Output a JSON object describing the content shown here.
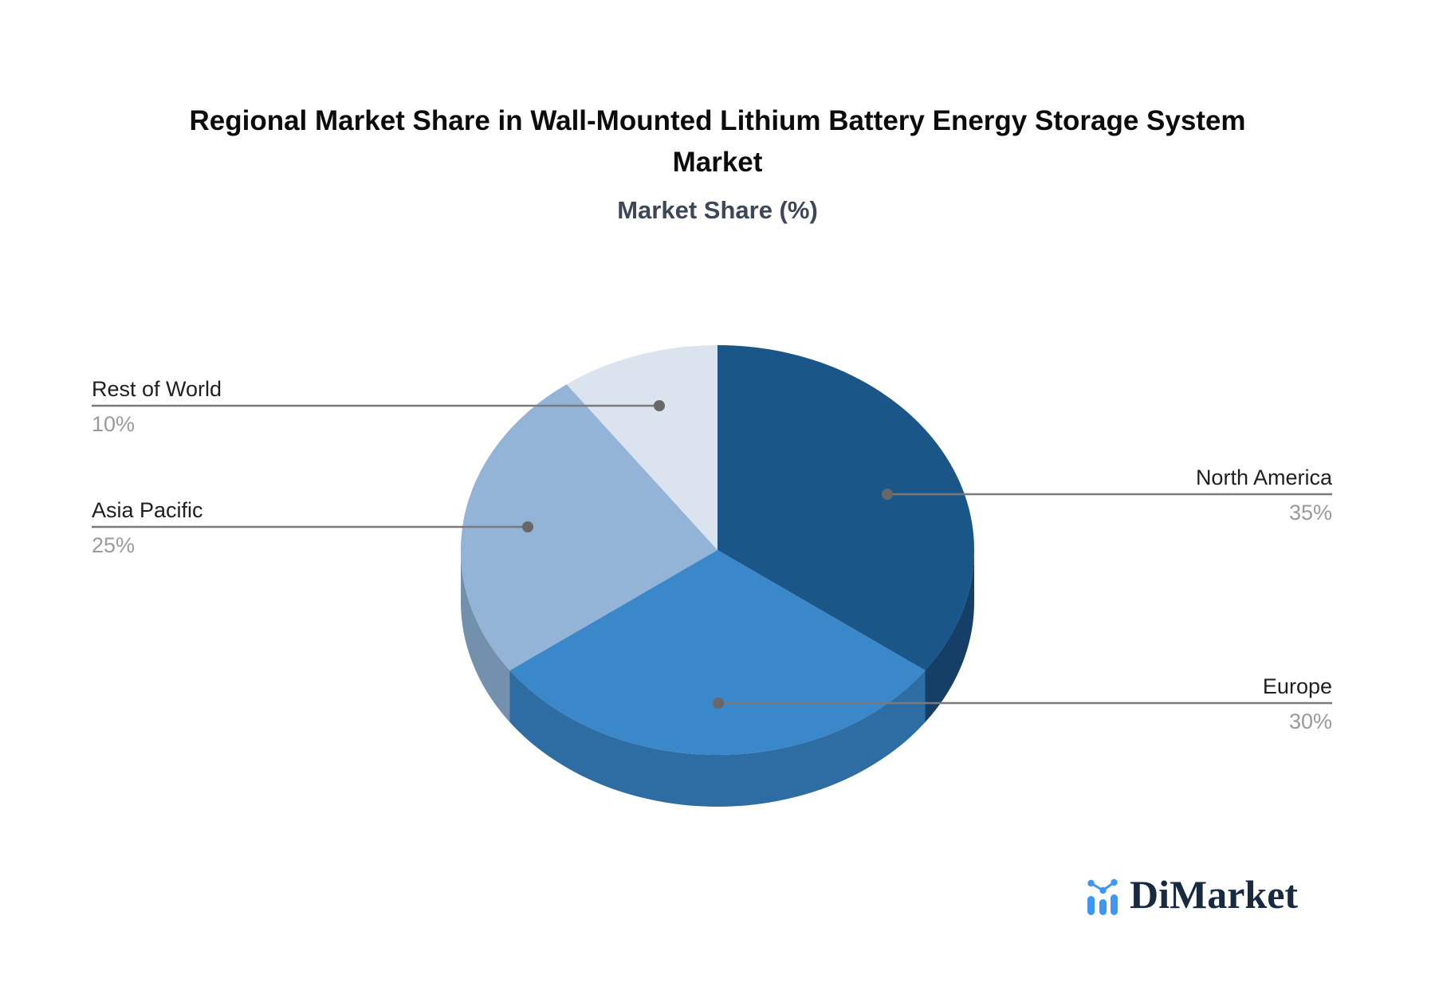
{
  "header": {
    "title_lines": [
      "Regional Market Share in Wall-Mounted Lithium Battery Energy Storage System",
      "Market"
    ],
    "subtitle": "Market Share (%)"
  },
  "chart_data": {
    "type": "pie",
    "style": "3d",
    "title": "Regional Market Share in Wall-Mounted Lithium Battery Energy Storage System Market",
    "subtitle": "Market Share (%)",
    "unit": "%",
    "labels": [
      "North America",
      "Europe",
      "Asia Pacific",
      "Rest of World"
    ],
    "values": [
      35,
      30,
      25,
      10
    ],
    "value_labels": [
      "35%",
      "30%",
      "25%",
      "10%"
    ],
    "colors": [
      "#1b5689",
      "#3a87ca",
      "#93b3d7",
      "#dbe3ef"
    ],
    "side_colors": [
      "#153f66",
      "#2e6da4",
      "#7390ad",
      "#b9c6d6"
    ],
    "start_angle_deg": 90,
    "direction": "clockwise",
    "legend_position": "callout-labels",
    "leader_line_color": "#7a7a7a",
    "leader_dot_color": "#686868"
  },
  "branding": {
    "logo_text": "DiMarket",
    "logo_icon": "bar-line-chart-icon",
    "logo_icon_color": "#3e97f2",
    "logo_text_color": "#182a40"
  }
}
